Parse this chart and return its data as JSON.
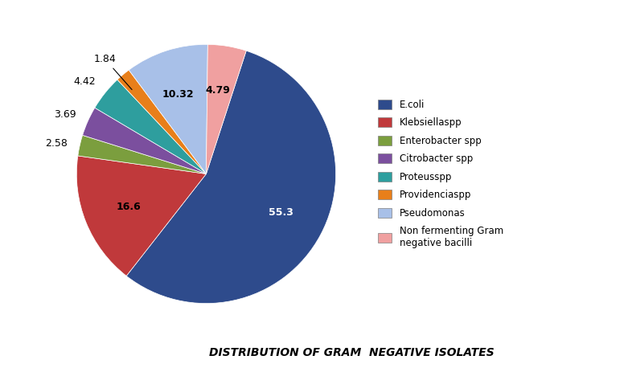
{
  "labels": [
    "E.coli",
    "Klebsiella spp",
    "Enterobacter spp",
    "Citrobacter spp",
    "Proteus spp",
    "Providencia spp",
    "Pseudomonas",
    "Non fermenting Gram\nnegative bacilli"
  ],
  "values": [
    55.3,
    16.6,
    2.58,
    3.69,
    4.42,
    1.84,
    10.32,
    4.79
  ],
  "colors": [
    "#2E4B8C",
    "#C0393B",
    "#7B9E3E",
    "#7B4F9E",
    "#2E9E9E",
    "#E87F1A",
    "#A8C0E8",
    "#F0A0A0"
  ],
  "autopct_labels": [
    "55.3",
    "16.6",
    "2.58",
    "3.69",
    "4.42",
    "1.84",
    "10.32",
    "4.79"
  ],
  "title": "DISTRIBUTION OF GRAM  NEGATIVE ISOLATES",
  "legend_labels": [
    "E.coli",
    "Klebsiellaspp",
    "Enterobacter spp",
    "Citrobacter spp",
    "Proteusspp",
    "Providenciaspp",
    "Pseudomonas",
    "Non fermenting Gram\nnegative bacilli"
  ],
  "figsize": [
    7.86,
    4.68
  ],
  "dpi": 100
}
